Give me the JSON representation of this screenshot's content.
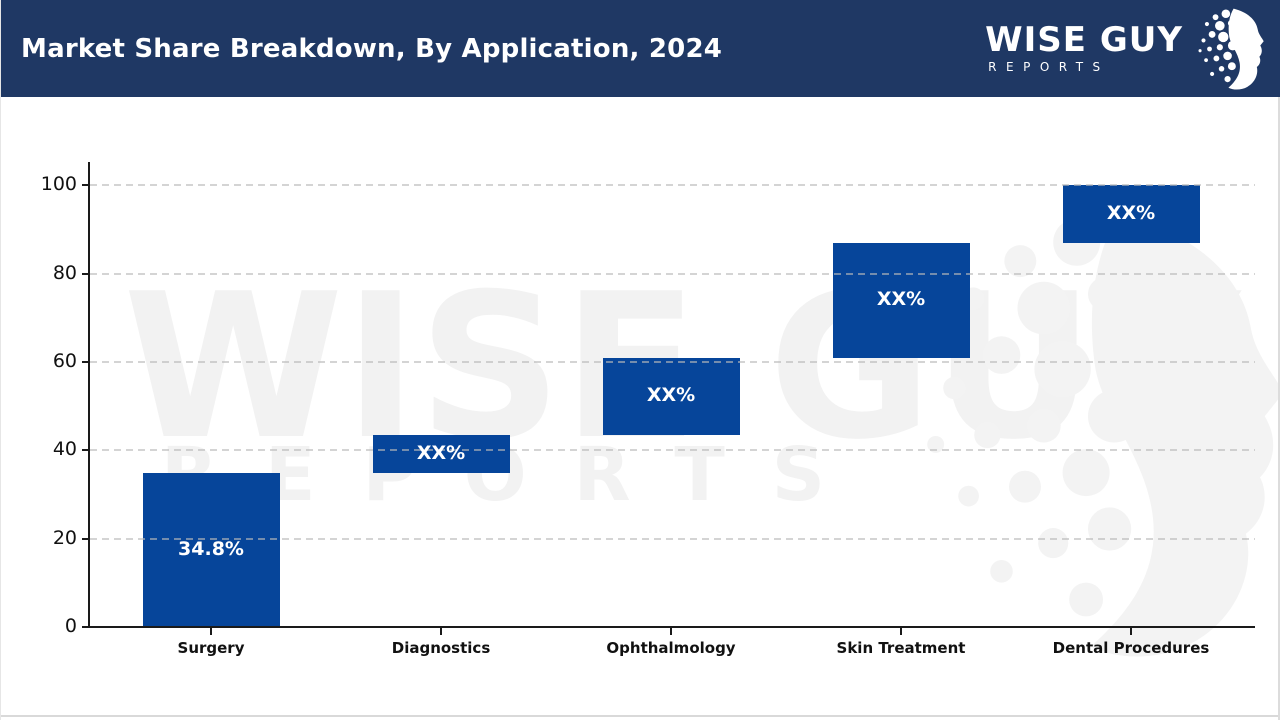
{
  "header": {
    "title": "Market Share Breakdown, By Application, 2024",
    "bg_color": "#1f3864",
    "logo": {
      "line1": "WISE GUY",
      "line2": "REPORTS"
    }
  },
  "watermark": {
    "line1": "WISE GUY",
    "line2": "REPORTS"
  },
  "chart_data": {
    "type": "bar",
    "subtype": "waterfall",
    "title": "Market Share Breakdown, By Application, 2024",
    "categories": [
      "Surgery",
      "Diagnostics",
      "Ophthalmology",
      "Skin Treatment",
      "Dental Procedures"
    ],
    "bars": [
      {
        "category": "Surgery",
        "start": 0,
        "end": 34.8,
        "label": "34.8%"
      },
      {
        "category": "Diagnostics",
        "start": 34.8,
        "end": 43.5,
        "label": "XX%"
      },
      {
        "category": "Ophthalmology",
        "start": 43.5,
        "end": 61,
        "label": "XX%"
      },
      {
        "category": "Skin Treatment",
        "start": 61,
        "end": 87,
        "label": "XX%"
      },
      {
        "category": "Dental Procedures",
        "start": 87,
        "end": 100,
        "label": "XX%"
      }
    ],
    "xlabel": "",
    "ylabel": "",
    "ylim": [
      0,
      100
    ],
    "yticks": [
      0,
      20,
      40,
      60,
      80,
      100
    ],
    "grid": "horizontal-dashed",
    "legend": "none",
    "bar_color": "#06459a",
    "value_label_color": "#ffffff"
  }
}
